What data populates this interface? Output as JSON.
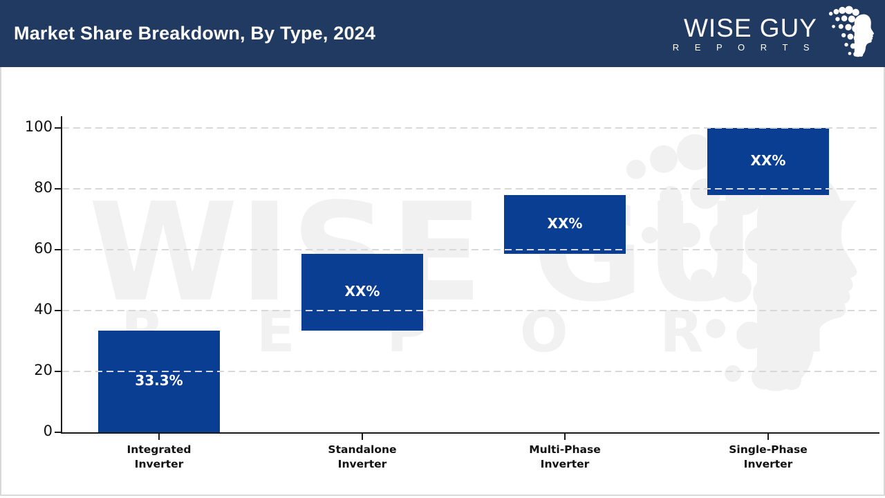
{
  "header": {
    "title": "Market Share Breakdown, By Type, 2024",
    "logo": {
      "line1": "WISE GUY",
      "line2": "R E P O R T S"
    }
  },
  "watermark": {
    "line1": "WISE GUY",
    "line2": "R E P O R T S"
  },
  "colors": {
    "header_bg": "#203a61",
    "bar": "#0a3e92",
    "grid": "#d8d8d8",
    "axis": "#1a1a1a",
    "watermark": "#f1f1f2"
  },
  "chart_data": {
    "type": "bar",
    "subtype": "waterfall-stacked-segments",
    "title": "Market Share Breakdown, By Type, 2024",
    "categories": [
      "Integrated Inverter",
      "Standalone Inverter",
      "Multi-Phase Inverter",
      "Single-Phase Inverter"
    ],
    "segments": [
      {
        "category": "Integrated Inverter",
        "start": 0,
        "end": 33.3,
        "label": "33.3%"
      },
      {
        "category": "Standalone Inverter",
        "start": 33.3,
        "end": 58.6,
        "label": "XX%"
      },
      {
        "category": "Multi-Phase Inverter",
        "start": 58.6,
        "end": 77.9,
        "label": "XX%"
      },
      {
        "category": "Single-Phase Inverter",
        "start": 77.9,
        "end": 100,
        "label": "XX%"
      }
    ],
    "yticks": [
      0,
      20,
      40,
      60,
      80,
      100
    ],
    "ylim": [
      0,
      100
    ],
    "xlabel": "",
    "ylabel": "",
    "grid": "dashed-horizontal",
    "legend": "none",
    "bar_color": "#0a3e92",
    "value_label_color": "#ffffff"
  }
}
